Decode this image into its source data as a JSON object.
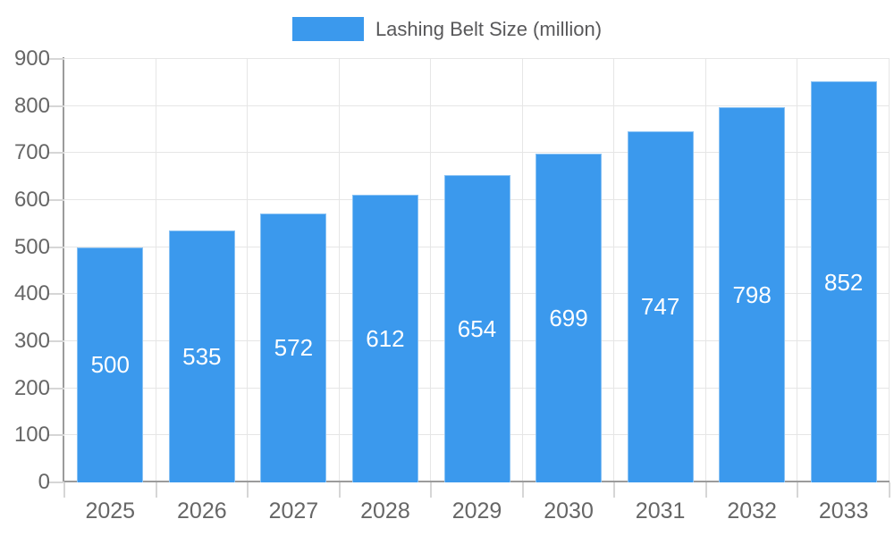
{
  "chart_data": {
    "type": "bar",
    "title": "Lashing Belt Size (million)",
    "categories": [
      "2025",
      "2026",
      "2027",
      "2028",
      "2029",
      "2030",
      "2031",
      "2032",
      "2033"
    ],
    "values": [
      500,
      535,
      572,
      612,
      654,
      699,
      747,
      798,
      852
    ],
    "xlabel": "",
    "ylabel": "",
    "ylim": [
      0,
      900
    ],
    "ytick_interval": 100,
    "grid": true,
    "legend_position": "top-center",
    "legend_entries": [
      "Lashing Belt Size (million)"
    ],
    "colors": {
      "bar": "#3B99ED",
      "bar_label": "#FFFFFF",
      "axis_line": "#9B9B9B",
      "grid_line": "#E6E6E6",
      "tick_line": "#D6D6D6",
      "tick_label": "#666666",
      "legend_text": "#58585A",
      "background": "#FFFFFF"
    }
  }
}
